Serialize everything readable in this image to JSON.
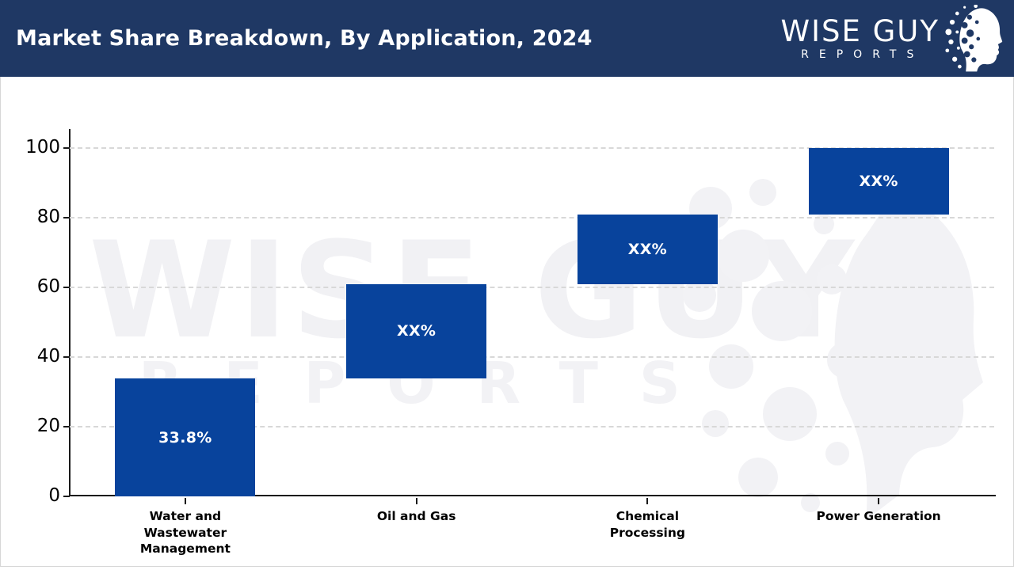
{
  "header": {
    "title": "Market Share Breakdown, By Application, 2024",
    "bg_color": "#1f3864",
    "logo": {
      "line1": "WISE GUY",
      "line2": "REPORTS"
    }
  },
  "watermark": {
    "line1": "WISE GUY",
    "line2": "REPORTS"
  },
  "chart_data": {
    "type": "bar",
    "subtype": "waterfall",
    "title": "Market Share Breakdown, By Application, 2024",
    "xlabel": "",
    "ylabel": "",
    "ylim": [
      0,
      105
    ],
    "y_ticks": [
      0,
      20,
      40,
      60,
      80,
      100
    ],
    "grid": "horizontal dashed",
    "legend": "none",
    "bar_color": "#08439c",
    "categories": [
      "Water and Wastewater Management",
      "Oil and Gas",
      "Chemical Processing",
      "Power Generation"
    ],
    "segments": [
      {
        "category": "Water and Wastewater Management",
        "category_lines": [
          "Water and",
          "Wastewater",
          "Management"
        ],
        "start": 0,
        "end": 33.8,
        "label": "33.8%"
      },
      {
        "category": "Oil and Gas",
        "category_lines": [
          "Oil and Gas"
        ],
        "start": 33.8,
        "end": 61,
        "label": "XX%"
      },
      {
        "category": "Chemical Processing",
        "category_lines": [
          "Chemical",
          "Processing"
        ],
        "start": 61,
        "end": 81,
        "label": "XX%"
      },
      {
        "category": "Power Generation",
        "category_lines": [
          "Power Generation"
        ],
        "start": 81,
        "end": 100,
        "label": "XX%"
      }
    ]
  }
}
